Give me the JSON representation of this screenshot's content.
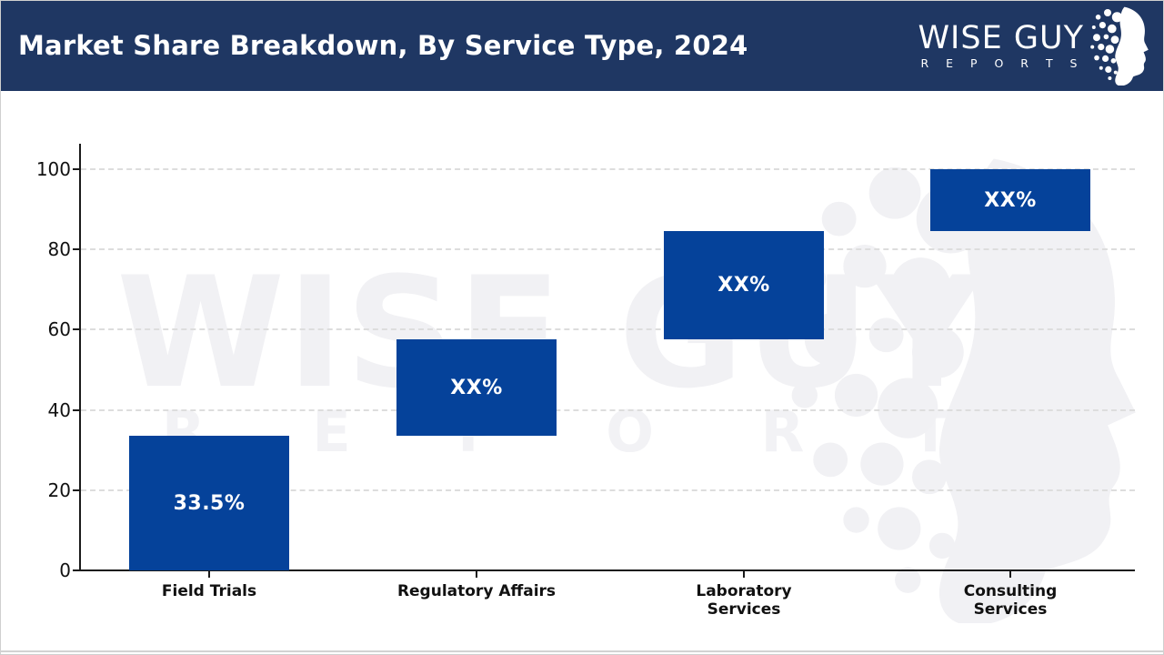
{
  "header": {
    "title": "Market Share Breakdown, By Service Type, 2024",
    "logo": {
      "line1": "WISE GUY",
      "line2": "R E P O R T S"
    }
  },
  "watermark": {
    "line1": "WISE GUY",
    "line2": "R E P O R T S"
  },
  "chart_data": {
    "type": "bar",
    "subtype": "waterfall",
    "title": "Market Share Breakdown, By Service Type, 2024",
    "categories": [
      "Field Trials",
      "Regulatory Affairs",
      "Laboratory Services",
      "Consulting Services"
    ],
    "category_lines": [
      [
        "Field Trials"
      ],
      [
        "Regulatory Affairs"
      ],
      [
        "Laboratory",
        "Services"
      ],
      [
        "Consulting",
        "Services"
      ]
    ],
    "series": [
      {
        "name": "Market Share",
        "segments": [
          {
            "category": "Field Trials",
            "start": 0,
            "end": 33.5,
            "label": "33.5%"
          },
          {
            "category": "Regulatory Affairs",
            "start": 33.5,
            "end": 57.5,
            "label": "XX%"
          },
          {
            "category": "Laboratory Services",
            "start": 57.5,
            "end": 84.5,
            "label": "XX%"
          },
          {
            "category": "Consulting Services",
            "start": 84.5,
            "end": 100,
            "label": "XX%"
          }
        ]
      }
    ],
    "xlabel": "",
    "ylabel": "",
    "ylim": [
      0,
      100
    ],
    "yticks": [
      0,
      20,
      40,
      60,
      80,
      100
    ],
    "grid": "horizontal-dashed",
    "legend": "none",
    "colors": {
      "bar": "#05429a",
      "bar_label": "#ffffff",
      "axis": "#1a1a1a",
      "grid": "#dddddd",
      "tick_label": "#111111",
      "header_bg": "#1f3763",
      "watermark": "#f1f1f4"
    }
  }
}
